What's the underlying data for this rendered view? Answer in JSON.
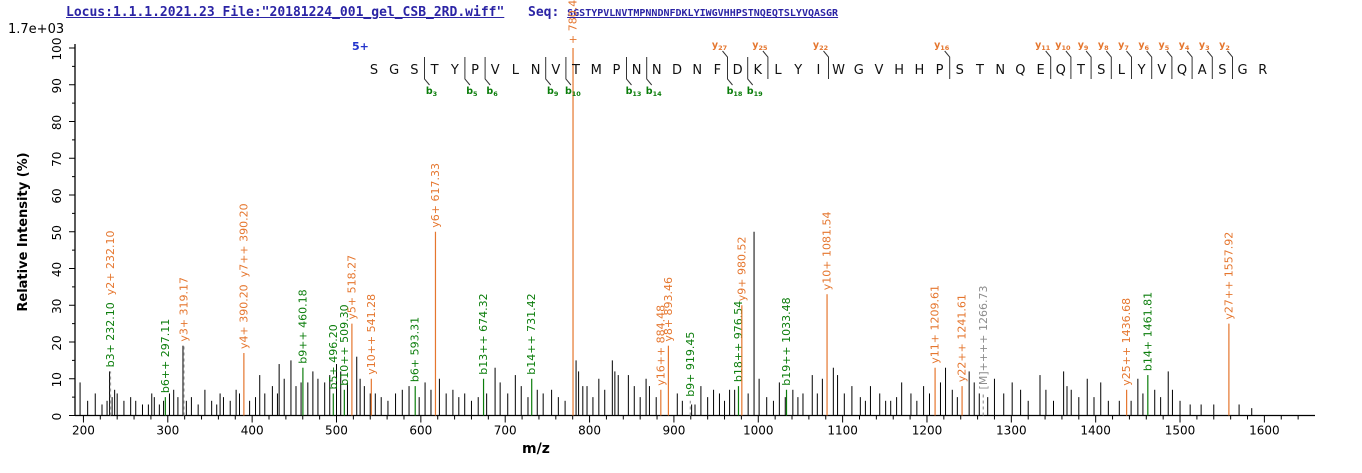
{
  "header": {
    "locus_file": "Locus:1.1.1.2021.23 File:\"20181224_001_gel_CSB_2RD.wiff\"",
    "seq_label": "Seq: ",
    "sequence": "SGSTYPVLNVTMPNNDNFDKLYIWGVHHPSTNQEQTSLYVQASGR"
  },
  "chart_data": {
    "type": "bar",
    "subtype": "ms2-fragmentation-spectrum",
    "title": "",
    "xlabel": "m/z",
    "ylabel": "Relative Intensity (%)",
    "scale_note": "1.7e+03",
    "xlim": [
      190,
      1660
    ],
    "ylim": [
      0,
      100
    ],
    "x_major_tick_start": 200,
    "x_major_tick_end": 1600,
    "x_major_tick_step": 100,
    "x_minor_tick_step": 20,
    "y_tick_step": 10,
    "grid": false,
    "precursor_charge": "5+",
    "sequence": "SGSTYPVLNVTMPNNDNFDKLYIWGVHHPSTNQEQTSLYVQASGR",
    "b_ion_markers": [
      {
        "ion": "b",
        "num": 3,
        "after_residue": 3
      },
      {
        "ion": "b",
        "num": 5,
        "after_residue": 5
      },
      {
        "ion": "b",
        "num": 6,
        "after_residue": 6
      },
      {
        "ion": "b",
        "num": 9,
        "after_residue": 9
      },
      {
        "ion": "b",
        "num": 10,
        "after_residue": 10
      },
      {
        "ion": "b",
        "num": 13,
        "after_residue": 13
      },
      {
        "ion": "b",
        "num": 14,
        "after_residue": 14
      },
      {
        "ion": "b",
        "num": 18,
        "after_residue": 18
      },
      {
        "ion": "b",
        "num": 19,
        "after_residue": 19
      }
    ],
    "y_ion_markers": [
      {
        "ion": "y",
        "num": 27,
        "after_residue": 18
      },
      {
        "ion": "y",
        "num": 25,
        "after_residue": 20
      },
      {
        "ion": "y",
        "num": 22,
        "after_residue": 23
      },
      {
        "ion": "y",
        "num": 16,
        "after_residue": 29
      },
      {
        "ion": "y",
        "num": 11,
        "after_residue": 34
      },
      {
        "ion": "y",
        "num": 10,
        "after_residue": 35
      },
      {
        "ion": "y",
        "num": 9,
        "after_residue": 36
      },
      {
        "ion": "y",
        "num": 8,
        "after_residue": 37
      },
      {
        "ion": "y",
        "num": 7,
        "after_residue": 38
      },
      {
        "ion": "y",
        "num": 6,
        "after_residue": 39
      },
      {
        "ion": "y",
        "num": 5,
        "after_residue": 40
      },
      {
        "ion": "y",
        "num": 4,
        "after_residue": 41
      },
      {
        "ion": "y",
        "num": 3,
        "after_residue": 42
      },
      {
        "ion": "y",
        "num": 2,
        "after_residue": 43
      }
    ],
    "annotated_peaks": [
      {
        "mz": 232.1,
        "intensity": 12,
        "dashed": true,
        "labels": [
          {
            "text": "b3+ 232.10",
            "type": "b"
          },
          {
            "text": "y2+ 232.10",
            "type": "y"
          }
        ]
      },
      {
        "mz": 297.11,
        "intensity": 5,
        "dashed": false,
        "labels": [
          {
            "text": "b6++ 297.11",
            "type": "b"
          }
        ]
      },
      {
        "mz": 319.17,
        "intensity": 19,
        "dashed": true,
        "labels": [
          {
            "text": "y3+ 319.17",
            "type": "y"
          }
        ]
      },
      {
        "mz": 390.2,
        "intensity": 17,
        "dashed": false,
        "labels": [
          {
            "text": "y4+ 390.20",
            "type": "y"
          },
          {
            "text": "y7++ 390.20",
            "type": "y"
          }
        ]
      },
      {
        "mz": 460.18,
        "intensity": 13,
        "dashed": false,
        "labels": [
          {
            "text": "b9++ 460.18",
            "type": "b"
          }
        ]
      },
      {
        "mz": 496.2,
        "intensity": 6,
        "dashed": false,
        "labels": [
          {
            "text": "b5+ 496.20",
            "type": "b"
          }
        ]
      },
      {
        "mz": 509.3,
        "intensity": 7,
        "dashed": false,
        "labels": [
          {
            "text": "b10++ 509.30",
            "type": "b"
          }
        ]
      },
      {
        "mz": 518.27,
        "intensity": 25,
        "dashed": false,
        "labels": [
          {
            "text": "y5+ 518.27",
            "type": "y"
          }
        ]
      },
      {
        "mz": 541.28,
        "intensity": 10,
        "dashed": false,
        "labels": [
          {
            "text": "y10++ 541.28",
            "type": "y"
          }
        ]
      },
      {
        "mz": 593.31,
        "intensity": 8,
        "dashed": false,
        "labels": [
          {
            "text": "b6+ 593.31",
            "type": "b"
          }
        ]
      },
      {
        "mz": 617.33,
        "intensity": 50,
        "dashed": false,
        "labels": [
          {
            "text": "y6+ 617.33",
            "type": "y"
          }
        ]
      },
      {
        "mz": 674.32,
        "intensity": 10,
        "dashed": false,
        "labels": [
          {
            "text": "b13++ 674.32",
            "type": "b"
          }
        ]
      },
      {
        "mz": 731.42,
        "intensity": 10,
        "dashed": false,
        "labels": [
          {
            "text": "b14++ 731.42",
            "type": "b"
          }
        ]
      },
      {
        "mz": 780.4,
        "intensity": 100,
        "dashed": false,
        "labels": [
          {
            "text": "+ 780.4",
            "type": "y"
          }
        ]
      },
      {
        "mz": 884.48,
        "intensity": 7,
        "dashed": false,
        "labels": [
          {
            "text": "y16++ 884.48",
            "type": "y"
          }
        ]
      },
      {
        "mz": 893.46,
        "intensity": 19,
        "dashed": false,
        "labels": [
          {
            "text": "y8+ 893.46",
            "type": "y"
          }
        ]
      },
      {
        "mz": 919.45,
        "intensity": 4,
        "dashed": true,
        "labels": [
          {
            "text": "b9+ 919.45",
            "type": "b"
          }
        ]
      },
      {
        "mz": 976.54,
        "intensity": 8,
        "dashed": false,
        "labels": [
          {
            "text": "b18++ 976.54",
            "type": "b"
          }
        ]
      },
      {
        "mz": 980.52,
        "intensity": 30,
        "dashed": false,
        "labels": [
          {
            "text": "y9+ 980.52",
            "type": "y"
          }
        ]
      },
      {
        "mz": 1033.48,
        "intensity": 7,
        "dashed": false,
        "labels": [
          {
            "text": "b19++ 1033.48",
            "type": "b"
          }
        ]
      },
      {
        "mz": 1081.54,
        "intensity": 33,
        "dashed": false,
        "labels": [
          {
            "text": "y10+ 1081.54",
            "type": "y"
          }
        ]
      },
      {
        "mz": 1209.61,
        "intensity": 13,
        "dashed": false,
        "labels": [
          {
            "text": "y11+ 1209.61",
            "type": "y"
          }
        ]
      },
      {
        "mz": 1241.61,
        "intensity": 8,
        "dashed": false,
        "labels": [
          {
            "text": "y22++ 1241.61",
            "type": "y"
          }
        ]
      },
      {
        "mz": 1266.73,
        "intensity": 6,
        "dashed": true,
        "labels": [
          {
            "text": "[M]++++ 1266.73",
            "type": "M"
          }
        ]
      },
      {
        "mz": 1436.68,
        "intensity": 7,
        "dashed": false,
        "labels": [
          {
            "text": "y25++ 1436.68",
            "type": "y"
          }
        ]
      },
      {
        "mz": 1461.81,
        "intensity": 11,
        "dashed": false,
        "labels": [
          {
            "text": "b14+ 1461.81",
            "type": "b"
          }
        ]
      },
      {
        "mz": 1557.92,
        "intensity": 25,
        "dashed": false,
        "labels": [
          {
            "text": "y27++ 1557.92",
            "type": "y"
          }
        ]
      }
    ],
    "unannotated_peaks": [
      [
        196,
        9
      ],
      [
        205,
        4
      ],
      [
        214,
        6
      ],
      [
        222,
        3
      ],
      [
        228,
        4
      ],
      [
        231,
        12
      ],
      [
        234,
        5
      ],
      [
        237,
        7
      ],
      [
        240,
        6
      ],
      [
        248,
        4
      ],
      [
        256,
        5
      ],
      [
        262,
        4
      ],
      [
        270,
        3
      ],
      [
        277,
        3
      ],
      [
        281,
        6
      ],
      [
        284,
        5
      ],
      [
        290,
        3
      ],
      [
        295,
        4
      ],
      [
        302,
        6
      ],
      [
        307,
        7
      ],
      [
        312,
        5
      ],
      [
        318,
        19
      ],
      [
        322,
        4
      ],
      [
        328,
        5
      ],
      [
        336,
        3
      ],
      [
        344,
        7
      ],
      [
        352,
        4
      ],
      [
        358,
        3
      ],
      [
        362,
        6
      ],
      [
        366,
        5
      ],
      [
        374,
        4
      ],
      [
        381,
        7
      ],
      [
        385,
        6
      ],
      [
        397,
        4
      ],
      [
        404,
        5
      ],
      [
        409,
        11
      ],
      [
        415,
        6
      ],
      [
        424,
        8
      ],
      [
        430,
        6
      ],
      [
        432,
        14
      ],
      [
        438,
        10
      ],
      [
        446,
        15
      ],
      [
        452,
        8
      ],
      [
        458,
        9
      ],
      [
        466,
        9
      ],
      [
        472,
        12
      ],
      [
        478,
        10
      ],
      [
        486,
        9
      ],
      [
        492,
        11
      ],
      [
        500,
        14
      ],
      [
        505,
        12
      ],
      [
        513,
        9
      ],
      [
        524,
        16
      ],
      [
        528,
        10
      ],
      [
        533,
        8
      ],
      [
        540,
        6
      ],
      [
        546,
        6
      ],
      [
        553,
        5
      ],
      [
        561,
        4
      ],
      [
        570,
        6
      ],
      [
        578,
        7
      ],
      [
        586,
        8
      ],
      [
        598,
        5
      ],
      [
        605,
        9
      ],
      [
        612,
        7
      ],
      [
        622,
        10
      ],
      [
        630,
        6
      ],
      [
        638,
        7
      ],
      [
        645,
        5
      ],
      [
        652,
        6
      ],
      [
        660,
        4
      ],
      [
        668,
        5
      ],
      [
        678,
        6
      ],
      [
        688,
        13
      ],
      [
        694,
        9
      ],
      [
        703,
        6
      ],
      [
        712,
        11
      ],
      [
        719,
        8
      ],
      [
        727,
        5
      ],
      [
        738,
        7
      ],
      [
        745,
        6
      ],
      [
        755,
        7
      ],
      [
        763,
        5
      ],
      [
        771,
        4
      ],
      [
        784,
        15
      ],
      [
        787,
        12
      ],
      [
        792,
        8
      ],
      [
        797,
        8
      ],
      [
        804,
        5
      ],
      [
        811,
        10
      ],
      [
        818,
        7
      ],
      [
        827,
        15
      ],
      [
        830,
        12
      ],
      [
        834,
        11
      ],
      [
        846,
        11
      ],
      [
        853,
        8
      ],
      [
        860,
        5
      ],
      [
        867,
        10
      ],
      [
        871,
        8
      ],
      [
        879,
        5
      ],
      [
        904,
        6
      ],
      [
        910,
        4
      ],
      [
        921,
        3
      ],
      [
        925,
        3
      ],
      [
        932,
        8
      ],
      [
        940,
        5
      ],
      [
        947,
        7
      ],
      [
        954,
        6
      ],
      [
        960,
        4
      ],
      [
        966,
        7
      ],
      [
        972,
        7
      ],
      [
        988,
        6
      ],
      [
        995,
        50
      ],
      [
        1001,
        10
      ],
      [
        1010,
        5
      ],
      [
        1018,
        4
      ],
      [
        1025,
        9
      ],
      [
        1032,
        5
      ],
      [
        1041,
        7
      ],
      [
        1047,
        5
      ],
      [
        1053,
        6
      ],
      [
        1064,
        11
      ],
      [
        1070,
        6
      ],
      [
        1076,
        10
      ],
      [
        1089,
        13
      ],
      [
        1094,
        11
      ],
      [
        1102,
        6
      ],
      [
        1111,
        8
      ],
      [
        1121,
        5
      ],
      [
        1127,
        4
      ],
      [
        1133,
        8
      ],
      [
        1144,
        6
      ],
      [
        1151,
        4
      ],
      [
        1157,
        4
      ],
      [
        1164,
        5
      ],
      [
        1170,
        9
      ],
      [
        1181,
        6
      ],
      [
        1188,
        4
      ],
      [
        1196,
        8
      ],
      [
        1203,
        6
      ],
      [
        1216,
        9
      ],
      [
        1222,
        13
      ],
      [
        1230,
        7
      ],
      [
        1236,
        5
      ],
      [
        1250,
        12
      ],
      [
        1256,
        9
      ],
      [
        1262,
        6
      ],
      [
        1272,
        5
      ],
      [
        1280,
        10
      ],
      [
        1291,
        6
      ],
      [
        1301,
        9
      ],
      [
        1311,
        7
      ],
      [
        1320,
        4
      ],
      [
        1334,
        11
      ],
      [
        1341,
        7
      ],
      [
        1350,
        4
      ],
      [
        1362,
        12
      ],
      [
        1366,
        8
      ],
      [
        1371,
        7
      ],
      [
        1380,
        5
      ],
      [
        1390,
        10
      ],
      [
        1398,
        5
      ],
      [
        1406,
        9
      ],
      [
        1415,
        4
      ],
      [
        1428,
        4
      ],
      [
        1442,
        4
      ],
      [
        1450,
        10
      ],
      [
        1456,
        6
      ],
      [
        1470,
        7
      ],
      [
        1477,
        5
      ],
      [
        1486,
        12
      ],
      [
        1491,
        7
      ],
      [
        1500,
        4
      ],
      [
        1512,
        3
      ],
      [
        1525,
        3
      ],
      [
        1540,
        3
      ],
      [
        1570,
        3
      ],
      [
        1585,
        2
      ]
    ],
    "colors": {
      "y_ion": "#e5762e",
      "b_ion": "#0b7d0b",
      "precursor_M": "#8c8c8c",
      "peak": "#000000",
      "header_blue": "#2b24a5",
      "charge_blue": "#2233cc",
      "dashed_leader": "#999999",
      "axis": "#000000"
    }
  }
}
